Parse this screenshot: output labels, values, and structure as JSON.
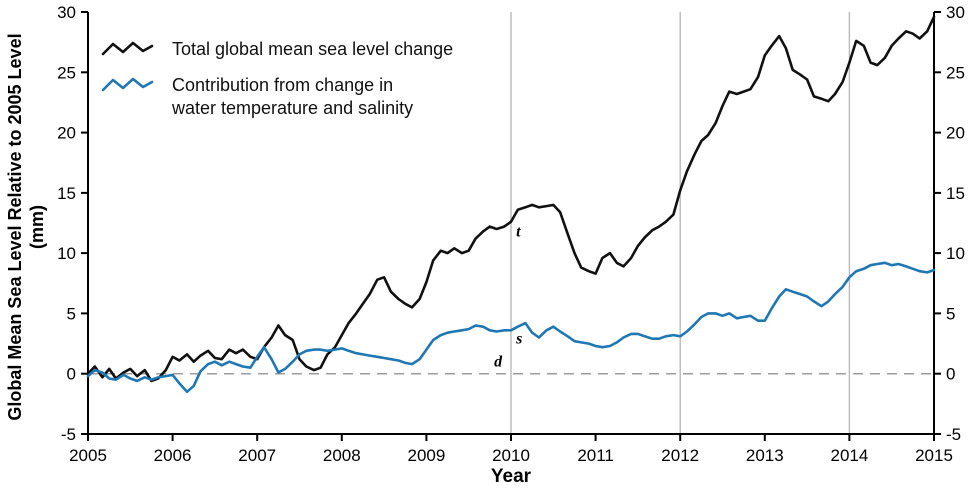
{
  "labels": {
    "ylabel_line1": "Global Mean Sea Level Relative to 2005 Level",
    "ylabel_line2": "(mm)",
    "xlabel": "Year"
  },
  "legend": {
    "items": [
      {
        "label_lines": [
          "Total global mean sea level change",
          ""
        ],
        "color": "#111111"
      },
      {
        "label_lines": [
          "Contribution from change in",
          "water temperature and salinity"
        ],
        "color": "#1f77b4"
      }
    ]
  },
  "chart_data": {
    "type": "line",
    "title": "",
    "xlabel": "Year",
    "ylabel": "Global Mean Sea Level Relative to 2005 Level (mm)",
    "xlim": [
      2005,
      2015
    ],
    "ylim": [
      -5,
      30
    ],
    "xticks": [
      2005,
      2006,
      2007,
      2008,
      2009,
      2010,
      2011,
      2012,
      2013,
      2014,
      2015
    ],
    "yticks": [
      -5,
      0,
      5,
      10,
      15,
      20,
      25,
      30
    ],
    "grid_vlines_x": [
      2010,
      2012,
      2014
    ],
    "zero_line_dashed": true,
    "legend_position": "top-left",
    "annotations": [
      {
        "text": "t",
        "x": 2010.06,
        "y": 11.4
      },
      {
        "text": "s",
        "x": 2010.06,
        "y": 2.5
      },
      {
        "text": "d",
        "x": 2009.8,
        "y": 0.6
      }
    ],
    "series": [
      {
        "name": "Total global mean sea level change",
        "color": "#111111",
        "points": [
          [
            2005.0,
            0.0
          ],
          [
            2005.08,
            0.6
          ],
          [
            2005.17,
            -0.3
          ],
          [
            2005.25,
            0.4
          ],
          [
            2005.33,
            -0.4
          ],
          [
            2005.42,
            0.1
          ],
          [
            2005.5,
            0.4
          ],
          [
            2005.58,
            -0.2
          ],
          [
            2005.67,
            0.3
          ],
          [
            2005.75,
            -0.6
          ],
          [
            2005.83,
            -0.4
          ],
          [
            2005.92,
            0.3
          ],
          [
            2006.0,
            1.4
          ],
          [
            2006.08,
            1.1
          ],
          [
            2006.17,
            1.6
          ],
          [
            2006.25,
            1.0
          ],
          [
            2006.33,
            1.5
          ],
          [
            2006.42,
            1.9
          ],
          [
            2006.5,
            1.3
          ],
          [
            2006.58,
            1.2
          ],
          [
            2006.67,
            2.0
          ],
          [
            2006.75,
            1.7
          ],
          [
            2006.83,
            2.0
          ],
          [
            2006.92,
            1.4
          ],
          [
            2007.0,
            1.2
          ],
          [
            2007.08,
            2.2
          ],
          [
            2007.17,
            3.0
          ],
          [
            2007.25,
            4.0
          ],
          [
            2007.33,
            3.2
          ],
          [
            2007.42,
            2.8
          ],
          [
            2007.5,
            1.2
          ],
          [
            2007.58,
            0.6
          ],
          [
            2007.67,
            0.3
          ],
          [
            2007.75,
            0.5
          ],
          [
            2007.83,
            1.6
          ],
          [
            2007.92,
            2.2
          ],
          [
            2008.0,
            3.2
          ],
          [
            2008.08,
            4.2
          ],
          [
            2008.17,
            5.0
          ],
          [
            2008.25,
            5.8
          ],
          [
            2008.33,
            6.6
          ],
          [
            2008.42,
            7.8
          ],
          [
            2008.5,
            8.0
          ],
          [
            2008.58,
            6.8
          ],
          [
            2008.67,
            6.2
          ],
          [
            2008.75,
            5.8
          ],
          [
            2008.83,
            5.5
          ],
          [
            2008.92,
            6.2
          ],
          [
            2009.0,
            7.6
          ],
          [
            2009.08,
            9.4
          ],
          [
            2009.17,
            10.2
          ],
          [
            2009.25,
            10.0
          ],
          [
            2009.33,
            10.4
          ],
          [
            2009.42,
            10.0
          ],
          [
            2009.5,
            10.2
          ],
          [
            2009.58,
            11.2
          ],
          [
            2009.67,
            11.8
          ],
          [
            2009.75,
            12.2
          ],
          [
            2009.83,
            12.0
          ],
          [
            2009.92,
            12.2
          ],
          [
            2010.0,
            12.6
          ],
          [
            2010.08,
            13.6
          ],
          [
            2010.17,
            13.8
          ],
          [
            2010.25,
            14.0
          ],
          [
            2010.33,
            13.8
          ],
          [
            2010.42,
            13.9
          ],
          [
            2010.5,
            14.0
          ],
          [
            2010.58,
            13.4
          ],
          [
            2010.67,
            11.6
          ],
          [
            2010.75,
            10.0
          ],
          [
            2010.83,
            8.8
          ],
          [
            2010.92,
            8.5
          ],
          [
            2011.0,
            8.3
          ],
          [
            2011.08,
            9.6
          ],
          [
            2011.17,
            10.0
          ],
          [
            2011.25,
            9.2
          ],
          [
            2011.33,
            8.9
          ],
          [
            2011.42,
            9.6
          ],
          [
            2011.5,
            10.6
          ],
          [
            2011.58,
            11.3
          ],
          [
            2011.67,
            11.9
          ],
          [
            2011.75,
            12.2
          ],
          [
            2011.83,
            12.6
          ],
          [
            2011.92,
            13.2
          ],
          [
            2012.0,
            15.2
          ],
          [
            2012.08,
            16.8
          ],
          [
            2012.17,
            18.2
          ],
          [
            2012.25,
            19.3
          ],
          [
            2012.33,
            19.8
          ],
          [
            2012.42,
            20.8
          ],
          [
            2012.5,
            22.2
          ],
          [
            2012.58,
            23.4
          ],
          [
            2012.67,
            23.2
          ],
          [
            2012.75,
            23.4
          ],
          [
            2012.83,
            23.6
          ],
          [
            2012.92,
            24.6
          ],
          [
            2013.0,
            26.4
          ],
          [
            2013.08,
            27.2
          ],
          [
            2013.17,
            28.0
          ],
          [
            2013.25,
            27.0
          ],
          [
            2013.33,
            25.2
          ],
          [
            2013.42,
            24.8
          ],
          [
            2013.5,
            24.4
          ],
          [
            2013.58,
            23.0
          ],
          [
            2013.67,
            22.8
          ],
          [
            2013.75,
            22.6
          ],
          [
            2013.83,
            23.2
          ],
          [
            2013.92,
            24.2
          ],
          [
            2014.0,
            25.8
          ],
          [
            2014.08,
            27.6
          ],
          [
            2014.17,
            27.2
          ],
          [
            2014.25,
            25.8
          ],
          [
            2014.33,
            25.6
          ],
          [
            2014.42,
            26.2
          ],
          [
            2014.5,
            27.2
          ],
          [
            2014.58,
            27.8
          ],
          [
            2014.67,
            28.4
          ],
          [
            2014.75,
            28.2
          ],
          [
            2014.83,
            27.8
          ],
          [
            2014.92,
            28.4
          ],
          [
            2015.0,
            29.6
          ]
        ]
      },
      {
        "name": "Contribution from change in water temperature and salinity",
        "color": "#1f77b4",
        "points": [
          [
            2005.0,
            -0.2
          ],
          [
            2005.08,
            0.3
          ],
          [
            2005.17,
            0.1
          ],
          [
            2005.25,
            -0.4
          ],
          [
            2005.33,
            -0.5
          ],
          [
            2005.42,
            -0.1
          ],
          [
            2005.5,
            -0.4
          ],
          [
            2005.58,
            -0.6
          ],
          [
            2005.67,
            -0.3
          ],
          [
            2005.75,
            -0.5
          ],
          [
            2005.83,
            -0.3
          ],
          [
            2005.92,
            -0.2
          ],
          [
            2006.0,
            -0.1
          ],
          [
            2006.08,
            -0.8
          ],
          [
            2006.17,
            -1.5
          ],
          [
            2006.25,
            -1.0
          ],
          [
            2006.33,
            0.2
          ],
          [
            2006.42,
            0.8
          ],
          [
            2006.5,
            1.0
          ],
          [
            2006.58,
            0.7
          ],
          [
            2006.67,
            1.0
          ],
          [
            2006.75,
            0.8
          ],
          [
            2006.83,
            0.6
          ],
          [
            2006.92,
            0.5
          ],
          [
            2007.0,
            1.4
          ],
          [
            2007.08,
            2.2
          ],
          [
            2007.17,
            1.2
          ],
          [
            2007.25,
            0.1
          ],
          [
            2007.33,
            0.4
          ],
          [
            2007.42,
            1.0
          ],
          [
            2007.5,
            1.6
          ],
          [
            2007.58,
            1.9
          ],
          [
            2007.67,
            2.0
          ],
          [
            2007.75,
            2.0
          ],
          [
            2007.83,
            1.9
          ],
          [
            2007.92,
            2.0
          ],
          [
            2008.0,
            2.1
          ],
          [
            2008.08,
            1.9
          ],
          [
            2008.17,
            1.7
          ],
          [
            2008.25,
            1.6
          ],
          [
            2008.33,
            1.5
          ],
          [
            2008.42,
            1.4
          ],
          [
            2008.5,
            1.3
          ],
          [
            2008.58,
            1.2
          ],
          [
            2008.67,
            1.1
          ],
          [
            2008.75,
            0.9
          ],
          [
            2008.83,
            0.8
          ],
          [
            2008.92,
            1.2
          ],
          [
            2009.0,
            2.0
          ],
          [
            2009.08,
            2.8
          ],
          [
            2009.17,
            3.2
          ],
          [
            2009.25,
            3.4
          ],
          [
            2009.33,
            3.5
          ],
          [
            2009.42,
            3.6
          ],
          [
            2009.5,
            3.7
          ],
          [
            2009.58,
            4.0
          ],
          [
            2009.67,
            3.9
          ],
          [
            2009.75,
            3.6
          ],
          [
            2009.83,
            3.5
          ],
          [
            2009.92,
            3.6
          ],
          [
            2010.0,
            3.6
          ],
          [
            2010.08,
            3.9
          ],
          [
            2010.17,
            4.2
          ],
          [
            2010.25,
            3.4
          ],
          [
            2010.33,
            3.0
          ],
          [
            2010.42,
            3.6
          ],
          [
            2010.5,
            3.9
          ],
          [
            2010.58,
            3.5
          ],
          [
            2010.67,
            3.1
          ],
          [
            2010.75,
            2.7
          ],
          [
            2010.83,
            2.6
          ],
          [
            2010.92,
            2.5
          ],
          [
            2011.0,
            2.3
          ],
          [
            2011.08,
            2.2
          ],
          [
            2011.17,
            2.3
          ],
          [
            2011.25,
            2.6
          ],
          [
            2011.33,
            3.0
          ],
          [
            2011.42,
            3.3
          ],
          [
            2011.5,
            3.3
          ],
          [
            2011.58,
            3.1
          ],
          [
            2011.67,
            2.9
          ],
          [
            2011.75,
            2.9
          ],
          [
            2011.83,
            3.1
          ],
          [
            2011.92,
            3.2
          ],
          [
            2012.0,
            3.1
          ],
          [
            2012.08,
            3.5
          ],
          [
            2012.17,
            4.1
          ],
          [
            2012.25,
            4.7
          ],
          [
            2012.33,
            5.0
          ],
          [
            2012.42,
            5.0
          ],
          [
            2012.5,
            4.8
          ],
          [
            2012.58,
            5.0
          ],
          [
            2012.67,
            4.6
          ],
          [
            2012.75,
            4.7
          ],
          [
            2012.83,
            4.8
          ],
          [
            2012.92,
            4.4
          ],
          [
            2013.0,
            4.4
          ],
          [
            2013.08,
            5.4
          ],
          [
            2013.17,
            6.4
          ],
          [
            2013.25,
            7.0
          ],
          [
            2013.33,
            6.8
          ],
          [
            2013.42,
            6.6
          ],
          [
            2013.5,
            6.4
          ],
          [
            2013.58,
            6.0
          ],
          [
            2013.67,
            5.6
          ],
          [
            2013.75,
            6.0
          ],
          [
            2013.83,
            6.6
          ],
          [
            2013.92,
            7.2
          ],
          [
            2014.0,
            8.0
          ],
          [
            2014.08,
            8.5
          ],
          [
            2014.17,
            8.7
          ],
          [
            2014.25,
            9.0
          ],
          [
            2014.33,
            9.1
          ],
          [
            2014.42,
            9.2
          ],
          [
            2014.5,
            9.0
          ],
          [
            2014.58,
            9.1
          ],
          [
            2014.67,
            8.9
          ],
          [
            2014.75,
            8.7
          ],
          [
            2014.83,
            8.5
          ],
          [
            2014.92,
            8.4
          ],
          [
            2015.0,
            8.6
          ]
        ]
      }
    ]
  }
}
